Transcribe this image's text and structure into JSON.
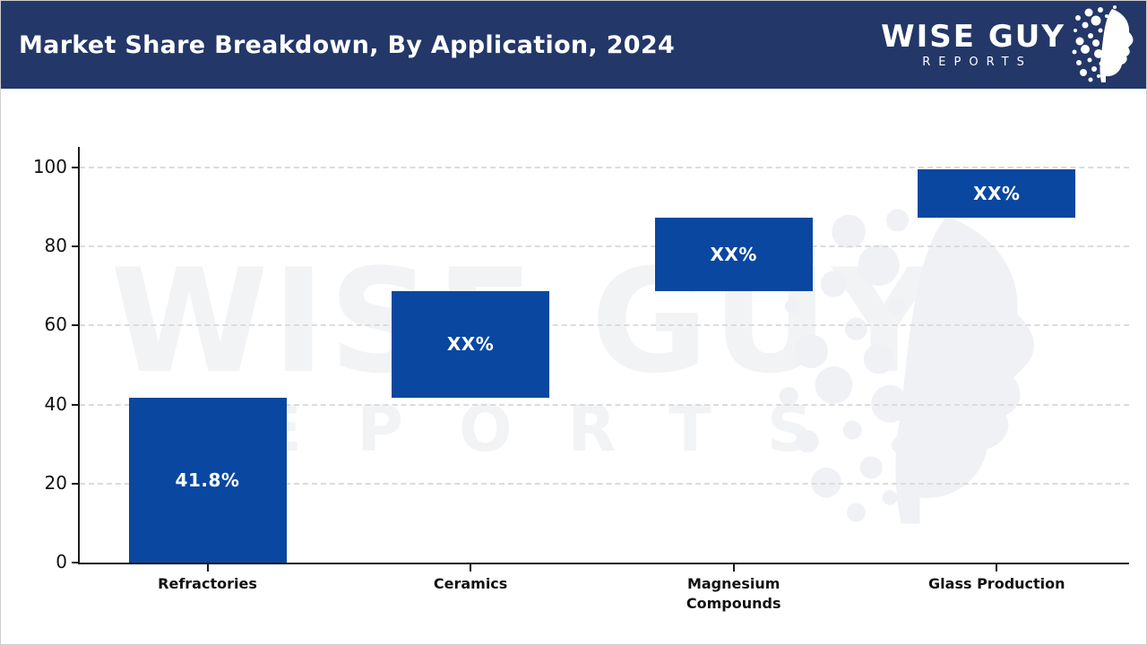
{
  "header": {
    "logo": {
      "line1": "WISE GUY",
      "line2": "REPORTS"
    }
  },
  "watermark": {
    "line1": "WISE GUY",
    "line2": "REPORTS"
  },
  "colors": {
    "header_bg": "#233768",
    "bar": "#0a47a0",
    "grid": "#dcdcdc",
    "watermark": "#f2f3f5"
  },
  "chart_data": {
    "type": "bar",
    "subtype": "waterfall",
    "title": "Market Share Breakdown, By Application, 2024",
    "categories": [
      "Refractories",
      "Ceramics",
      "Magnesium\nCompounds",
      "Glass Production"
    ],
    "segments": [
      {
        "category": "Refractories",
        "start": 0,
        "end": 41.8,
        "label": "41.8%"
      },
      {
        "category": "Ceramics",
        "start": 41.8,
        "end": 68.7,
        "label": "XX%"
      },
      {
        "category": "Magnesium Compounds",
        "start": 68.7,
        "end": 87.3,
        "label": "XX%"
      },
      {
        "category": "Glass Production",
        "start": 87.3,
        "end": 99.6,
        "label": "XX%"
      }
    ],
    "xlabel": "",
    "ylabel": "",
    "yticks": [
      0,
      20,
      40,
      60,
      80,
      100
    ],
    "ylim": [
      0,
      105
    ],
    "grid": true,
    "legend": false,
    "bar_color": "#0a47a0",
    "bar_label_color": "#ffffff"
  }
}
